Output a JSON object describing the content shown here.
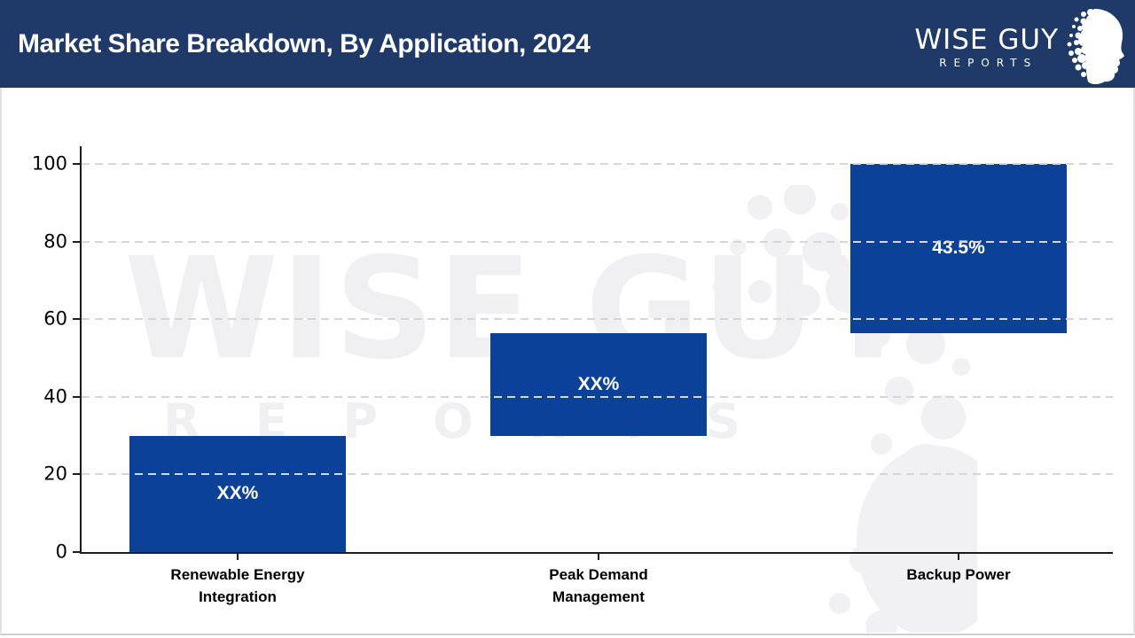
{
  "header": {
    "title": "Market Share Breakdown, By Application, 2024",
    "logo": {
      "line1": "WISE GUY",
      "line2": "REPORTS"
    }
  },
  "watermark": {
    "line1": "WISE GUY",
    "line2": "REPORTS"
  },
  "colors": {
    "header_bg": "#1f3a68",
    "bar": "#0b4298",
    "bar_label": "#ffffff",
    "grid": "#d6d6d6",
    "axis": "#1d1d1d",
    "watermark": "#f0f0f2"
  },
  "chart_data": {
    "type": "bar",
    "subtype": "floating-segment-columns",
    "title": "Market Share Breakdown, By Application, 2024",
    "categories": [
      [
        "Renewable Energy",
        "Integration"
      ],
      [
        "Peak Demand",
        "Management"
      ],
      [
        "Backup Power"
      ]
    ],
    "bars": [
      {
        "category": "Renewable Energy Integration",
        "label": "XX%",
        "from": 0,
        "to": 30
      },
      {
        "category": "Peak Demand Management",
        "label": "XX%",
        "from": 30,
        "to": 56.5
      },
      {
        "category": "Backup Power",
        "label": "43.5%",
        "from": 56.5,
        "to": 100
      }
    ],
    "xlabel": "",
    "ylabel": "",
    "ylim": [
      0,
      100
    ],
    "yticks": [
      0,
      20,
      40,
      60,
      80,
      100
    ],
    "grid": "horizontal dashed, drawn above bars",
    "legend": "none"
  }
}
